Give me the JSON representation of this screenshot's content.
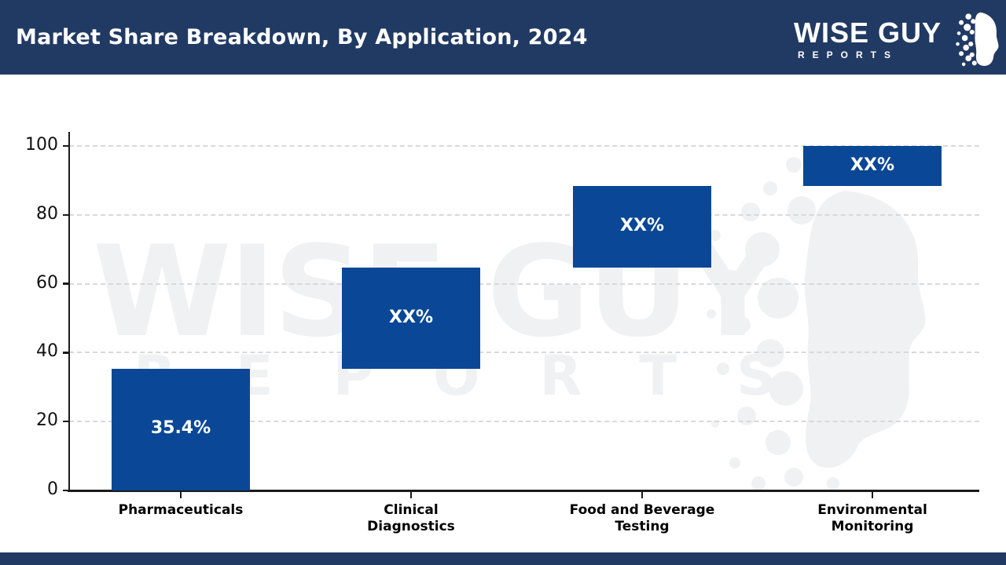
{
  "header": {
    "title": "Market Share Breakdown, By Application, 2024",
    "logo": {
      "name": "WISE GUY",
      "tagline": "REPORTS"
    }
  },
  "watermark": {
    "line1": "WISE GUY",
    "line2": "REPORTS"
  },
  "colors": {
    "header_bg": "#213a64",
    "footer_bg": "#213a64",
    "bar": "#0a4796",
    "grid": "#d9d9d9",
    "axis": "#1a1a1a",
    "watermark": "#f0f1f3",
    "title_text": "#ffffff",
    "bar_label_text": "#ffffff"
  },
  "chart_data": {
    "type": "bar",
    "subtype": "floating-waterfall",
    "title": "Market Share Breakdown, By Application, 2024",
    "categories": [
      "Pharmaceuticals",
      "Clinical Diagnostics",
      "Food and Beverage Testing",
      "Environmental Monitoring"
    ],
    "categories_display": [
      "Pharmaceuticals",
      "Clinical\nDiagnostics",
      "Food and Beverage\nTesting",
      "Environmental\nMonitoring"
    ],
    "segments": [
      {
        "category": "Pharmaceuticals",
        "label": "35.4%",
        "start": 0,
        "end": 35.4
      },
      {
        "category": "Clinical Diagnostics",
        "label": "XX%",
        "start": 35.4,
        "end": 64.6
      },
      {
        "category": "Food and Beverage Testing",
        "label": "XX%",
        "start": 64.6,
        "end": 88.3
      },
      {
        "category": "Environmental Monitoring",
        "label": "XX%",
        "start": 88.3,
        "end": 100
      }
    ],
    "ylim": [
      0,
      100
    ],
    "yticks": [
      0,
      20,
      40,
      60,
      80,
      100
    ],
    "xlabel": "",
    "ylabel": "",
    "grid": "horizontal-dashed",
    "legend": "none"
  }
}
